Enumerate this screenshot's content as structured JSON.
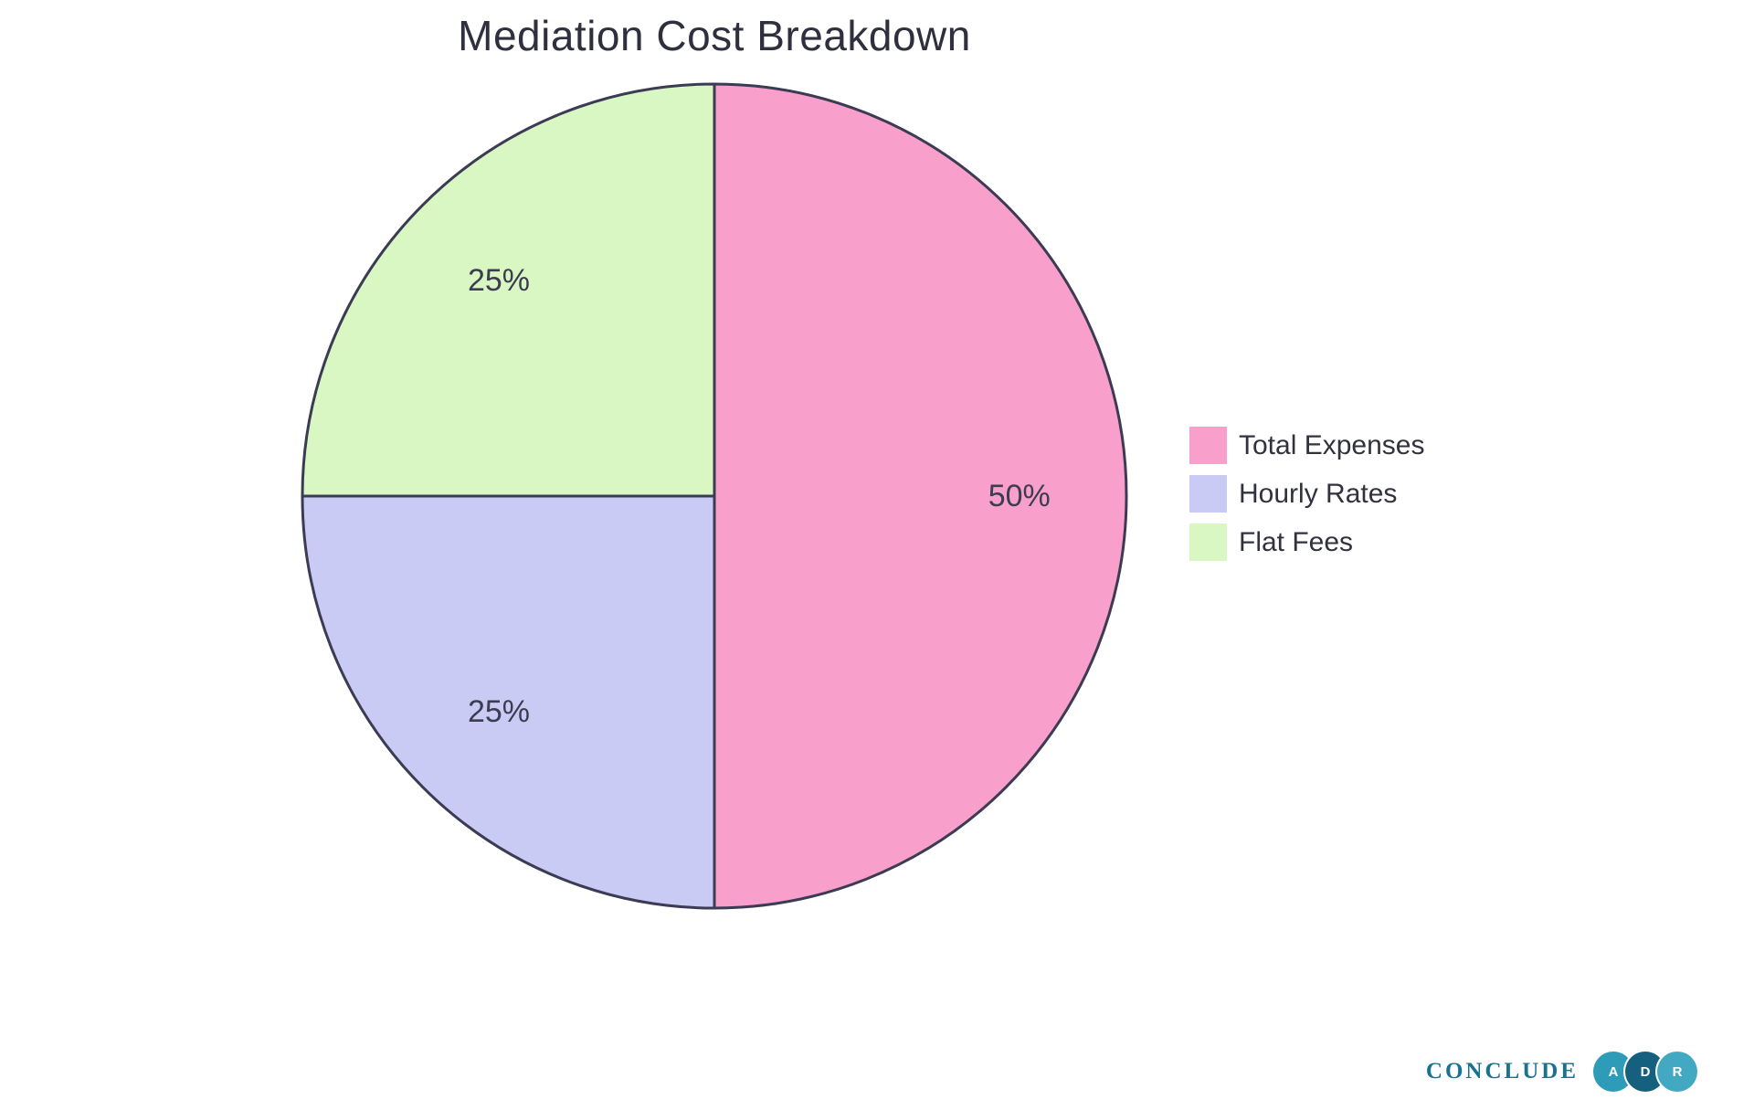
{
  "chart_data": {
    "type": "pie",
    "title": "Mediation Cost Breakdown",
    "slices": [
      {
        "label": "Total Expenses",
        "value": 50,
        "pct_label": "50%",
        "color": "#F99FCB"
      },
      {
        "label": "Hourly Rates",
        "value": 25,
        "pct_label": "25%",
        "color": "#C9CBF5"
      },
      {
        "label": "Flat Fees",
        "value": 25,
        "pct_label": "25%",
        "color": "#D8F7C3"
      }
    ],
    "start_angle_deg": -90,
    "direction": "clockwise",
    "legend_position": "right",
    "outline_color": "#3B3B54",
    "label_color": "#3D3D52",
    "background_color": "#FFFFFF"
  },
  "branding": {
    "wordmark": "CONCLUDE",
    "wordmark_color": "#1A7292",
    "badge_letters": [
      "A",
      "D",
      "R"
    ],
    "badge_colors": [
      "#2E9BB9",
      "#15607F",
      "#43A8C2"
    ]
  }
}
